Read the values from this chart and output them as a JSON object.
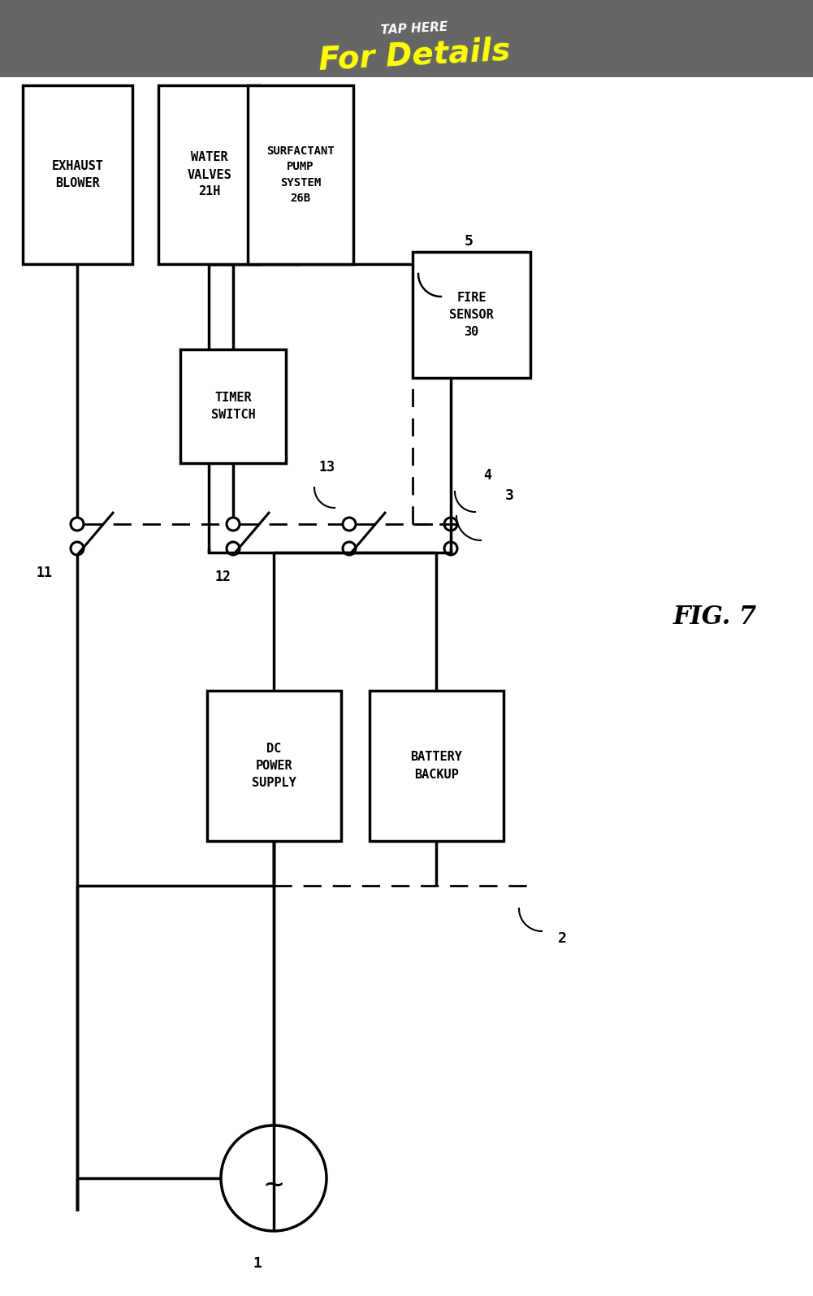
{
  "header_bg": "#666666",
  "header_text1": "TAP HERE",
  "header_text2": "For Details",
  "bg_color": "#ffffff",
  "fig7_label": "FIG. 7"
}
